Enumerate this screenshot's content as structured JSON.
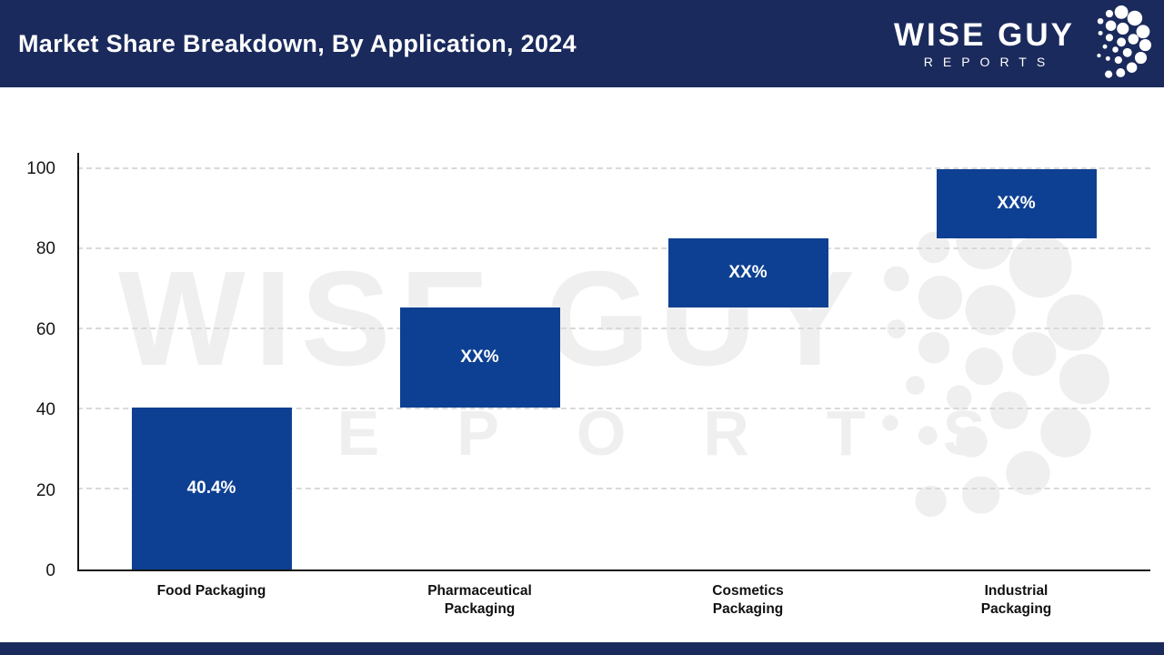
{
  "header": {
    "title": "Market Share Breakdown, By Application, 2024",
    "logo": {
      "line1": "WISE GUY",
      "line2": "REPORTS"
    }
  },
  "watermark": {
    "line1": "WISE GUY",
    "line2": "REPORTS"
  },
  "chart_data": {
    "type": "bar",
    "subtype": "floating-waterfall",
    "title": "Market Share Breakdown, By Application, 2024",
    "categories": [
      "Food Packaging",
      "Pharmaceutical Packaging",
      "Cosmetics Packaging",
      "Industrial Packaging"
    ],
    "segments": [
      {
        "category": "Food Packaging",
        "start": 0,
        "end": 40.4,
        "label": "40.4%"
      },
      {
        "category": "Pharmaceutical Packaging",
        "start": 40.4,
        "end": 65.5,
        "label": "XX%"
      },
      {
        "category": "Cosmetics Packaging",
        "start": 65.5,
        "end": 82.8,
        "label": "XX%"
      },
      {
        "category": "Industrial Packaging",
        "start": 82.8,
        "end": 100,
        "label": "XX%"
      }
    ],
    "ylim": [
      0,
      100
    ],
    "yticks": [
      0,
      20,
      40,
      60,
      80,
      100
    ],
    "grid": "dashed-horizontal",
    "legend": "none",
    "xlabel": "",
    "ylabel": ""
  },
  "colors": {
    "header_bg": "#1a2a5c",
    "footer_bg": "#1a2a5c",
    "bar": "#0d4092",
    "watermark": "#efefef",
    "grid": "#d9d9d9",
    "axis": "#161616",
    "text_on_dark": "#ffffff"
  }
}
